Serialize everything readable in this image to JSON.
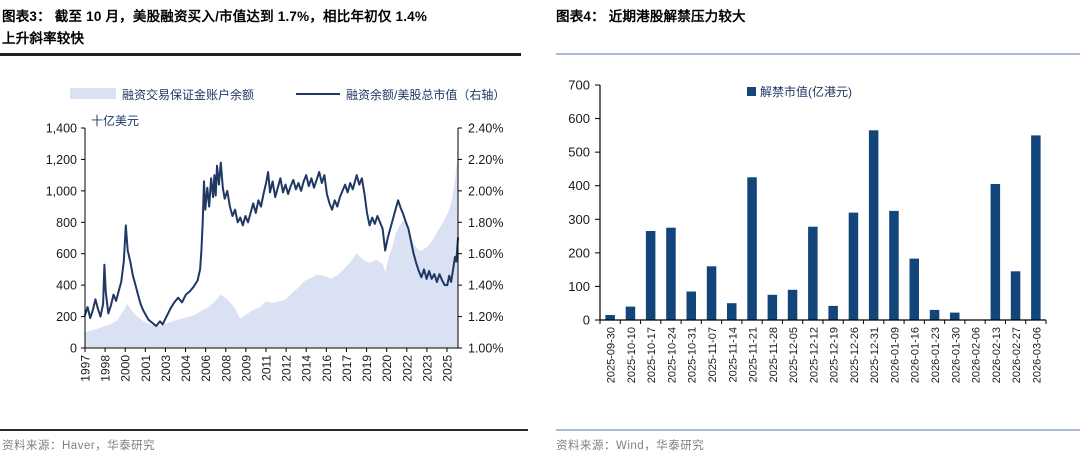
{
  "left_panel": {
    "title_line1": "图表3：  截至 10 月，美股融资买入/市值达到 1.7%，相比年初仅 1.4%",
    "title_line2": "上升斜率较快",
    "source": "资料来源：Haver，华泰研究"
  },
  "right_panel": {
    "title": "图表4：  近期港股解禁压力较大",
    "source": "资料来源：Wind，华泰研究"
  },
  "chart_data": [
    {
      "type": "area",
      "title": "截至10月，美股融资买入/市值达到1.7%，相比年初仅1.4%，上升斜率较快",
      "unit_label": "十亿美元",
      "legend": [
        {
          "label": "融资交易保证金账户余额",
          "swatch": "area"
        },
        {
          "label": "融资余额/美股总市值（右轴）",
          "swatch": "line"
        }
      ],
      "colors": {
        "area": "#d9e1f2",
        "line": "#1f3864",
        "axis": "#000000",
        "tick_text": "#1a1a1a",
        "legend_text": "#1f3864"
      },
      "left_axis": {
        "min": 0,
        "max": 1400,
        "ticks": [
          "0",
          "200",
          "400",
          "600",
          "800",
          "1,000",
          "1,200",
          "1,400"
        ]
      },
      "right_axis": {
        "min": 1.0,
        "max": 2.4,
        "ticks": [
          "1.00%",
          "1.20%",
          "1.40%",
          "1.60%",
          "1.80%",
          "2.00%",
          "2.20%",
          "2.40%"
        ]
      },
      "x_range": [
        1997,
        2025.83
      ],
      "x_tick_labels": [
        "1997",
        "1998",
        "2000",
        "2001",
        "2003",
        "2004",
        "2006",
        "2008",
        "2009",
        "2011",
        "2012",
        "2014",
        "2016",
        "2017",
        "2019",
        "2020",
        "2022",
        "2023",
        "2025"
      ],
      "area_series": {
        "name": "融资交易保证金账户余额",
        "points": [
          [
            1997.0,
            100
          ],
          [
            1997.5,
            112
          ],
          [
            1998.0,
            124
          ],
          [
            1998.5,
            138
          ],
          [
            1999.0,
            152
          ],
          [
            1999.5,
            176
          ],
          [
            2000.0,
            240
          ],
          [
            2000.25,
            278
          ],
          [
            2000.5,
            252
          ],
          [
            2000.75,
            225
          ],
          [
            2001.0,
            202
          ],
          [
            2001.5,
            172
          ],
          [
            2002.0,
            152
          ],
          [
            2002.5,
            140
          ],
          [
            2003.0,
            146
          ],
          [
            2003.5,
            162
          ],
          [
            2004.0,
            176
          ],
          [
            2004.5,
            186
          ],
          [
            2005.0,
            198
          ],
          [
            2005.5,
            212
          ],
          [
            2006.0,
            236
          ],
          [
            2006.5,
            258
          ],
          [
            2007.0,
            295
          ],
          [
            2007.5,
            340
          ],
          [
            2008.0,
            310
          ],
          [
            2008.5,
            262
          ],
          [
            2009.0,
            186
          ],
          [
            2009.5,
            214
          ],
          [
            2010.0,
            244
          ],
          [
            2010.5,
            258
          ],
          [
            2011.0,
            298
          ],
          [
            2011.5,
            286
          ],
          [
            2012.0,
            296
          ],
          [
            2012.5,
            308
          ],
          [
            2013.0,
            348
          ],
          [
            2013.5,
            386
          ],
          [
            2014.0,
            428
          ],
          [
            2014.5,
            448
          ],
          [
            2015.0,
            468
          ],
          [
            2015.5,
            458
          ],
          [
            2016.0,
            442
          ],
          [
            2016.5,
            462
          ],
          [
            2017.0,
            502
          ],
          [
            2017.5,
            544
          ],
          [
            2018.0,
            602
          ],
          [
            2018.3,
            578
          ],
          [
            2018.6,
            556
          ],
          [
            2019.0,
            542
          ],
          [
            2019.5,
            562
          ],
          [
            2020.0,
            534
          ],
          [
            2020.2,
            482
          ],
          [
            2020.5,
            580
          ],
          [
            2020.8,
            656
          ],
          [
            2021.0,
            722
          ],
          [
            2021.3,
            778
          ],
          [
            2021.6,
            812
          ],
          [
            2021.9,
            788
          ],
          [
            2022.2,
            700
          ],
          [
            2022.5,
            652
          ],
          [
            2022.8,
            622
          ],
          [
            2023.0,
            618
          ],
          [
            2023.5,
            648
          ],
          [
            2024.0,
            702
          ],
          [
            2024.3,
            752
          ],
          [
            2024.6,
            788
          ],
          [
            2024.9,
            836
          ],
          [
            2025.1,
            872
          ],
          [
            2025.3,
            920
          ],
          [
            2025.5,
            1010
          ],
          [
            2025.65,
            1105
          ],
          [
            2025.83,
            1250
          ]
        ]
      },
      "line_series": {
        "name": "融资余额/美股总市值（右轴）",
        "points": [
          [
            1997.0,
            1.21
          ],
          [
            1997.2,
            1.26
          ],
          [
            1997.4,
            1.19
          ],
          [
            1997.6,
            1.24
          ],
          [
            1997.8,
            1.31
          ],
          [
            1998.0,
            1.25
          ],
          [
            1998.2,
            1.2
          ],
          [
            1998.4,
            1.28
          ],
          [
            1998.5,
            1.53
          ],
          [
            1998.6,
            1.36
          ],
          [
            1998.8,
            1.22
          ],
          [
            1999.0,
            1.27
          ],
          [
            1999.2,
            1.34
          ],
          [
            1999.4,
            1.3
          ],
          [
            1999.6,
            1.36
          ],
          [
            1999.8,
            1.42
          ],
          [
            2000.0,
            1.55
          ],
          [
            2000.15,
            1.78
          ],
          [
            2000.3,
            1.62
          ],
          [
            2000.5,
            1.55
          ],
          [
            2000.7,
            1.46
          ],
          [
            2000.9,
            1.4
          ],
          [
            2001.1,
            1.34
          ],
          [
            2001.3,
            1.28
          ],
          [
            2001.5,
            1.24
          ],
          [
            2001.7,
            1.21
          ],
          [
            2001.9,
            1.18
          ],
          [
            2002.2,
            1.16
          ],
          [
            2002.5,
            1.14
          ],
          [
            2002.8,
            1.17
          ],
          [
            2003.0,
            1.15
          ],
          [
            2003.3,
            1.2
          ],
          [
            2003.6,
            1.25
          ],
          [
            2003.9,
            1.29
          ],
          [
            2004.2,
            1.32
          ],
          [
            2004.5,
            1.29
          ],
          [
            2004.8,
            1.34
          ],
          [
            2005.1,
            1.36
          ],
          [
            2005.4,
            1.39
          ],
          [
            2005.7,
            1.43
          ],
          [
            2005.9,
            1.5
          ],
          [
            2006.0,
            1.62
          ],
          [
            2006.1,
            1.8
          ],
          [
            2006.2,
            2.06
          ],
          [
            2006.3,
            1.88
          ],
          [
            2006.45,
            2.02
          ],
          [
            2006.6,
            1.9
          ],
          [
            2006.75,
            2.08
          ],
          [
            2006.9,
            1.96
          ],
          [
            2007.0,
            2.1
          ],
          [
            2007.1,
            1.97
          ],
          [
            2007.2,
            2.16
          ],
          [
            2007.35,
            2.04
          ],
          [
            2007.5,
            2.18
          ],
          [
            2007.65,
            2.02
          ],
          [
            2007.8,
            1.95
          ],
          [
            2008.0,
            2.0
          ],
          [
            2008.2,
            1.9
          ],
          [
            2008.4,
            1.84
          ],
          [
            2008.6,
            1.88
          ],
          [
            2008.8,
            1.8
          ],
          [
            2009.0,
            1.83
          ],
          [
            2009.2,
            1.78
          ],
          [
            2009.4,
            1.84
          ],
          [
            2009.6,
            1.8
          ],
          [
            2009.8,
            1.86
          ],
          [
            2010.0,
            1.92
          ],
          [
            2010.2,
            1.86
          ],
          [
            2010.4,
            1.94
          ],
          [
            2010.6,
            1.9
          ],
          [
            2010.8,
            1.98
          ],
          [
            2011.0,
            2.05
          ],
          [
            2011.15,
            2.12
          ],
          [
            2011.3,
            1.99
          ],
          [
            2011.5,
            2.06
          ],
          [
            2011.7,
            1.96
          ],
          [
            2011.9,
            2.02
          ],
          [
            2012.1,
            2.08
          ],
          [
            2012.3,
            1.99
          ],
          [
            2012.5,
            2.04
          ],
          [
            2012.7,
            1.98
          ],
          [
            2012.9,
            2.03
          ],
          [
            2013.1,
            2.07
          ],
          [
            2013.3,
            2.01
          ],
          [
            2013.5,
            2.05
          ],
          [
            2013.7,
            2.0
          ],
          [
            2013.9,
            2.06
          ],
          [
            2014.1,
            2.1
          ],
          [
            2014.3,
            2.03
          ],
          [
            2014.5,
            2.08
          ],
          [
            2014.7,
            2.02
          ],
          [
            2014.9,
            2.07
          ],
          [
            2015.1,
            2.12
          ],
          [
            2015.3,
            2.05
          ],
          [
            2015.5,
            2.1
          ],
          [
            2015.7,
            1.98
          ],
          [
            2015.9,
            1.92
          ],
          [
            2016.1,
            1.88
          ],
          [
            2016.3,
            1.94
          ],
          [
            2016.5,
            1.9
          ],
          [
            2016.7,
            1.96
          ],
          [
            2016.9,
            2.0
          ],
          [
            2017.1,
            2.04
          ],
          [
            2017.3,
            1.99
          ],
          [
            2017.5,
            2.05
          ],
          [
            2017.7,
            2.01
          ],
          [
            2017.9,
            2.07
          ],
          [
            2018.0,
            2.1
          ],
          [
            2018.2,
            2.04
          ],
          [
            2018.4,
            2.08
          ],
          [
            2018.6,
            1.98
          ],
          [
            2018.8,
            1.86
          ],
          [
            2019.0,
            1.78
          ],
          [
            2019.2,
            1.83
          ],
          [
            2019.4,
            1.79
          ],
          [
            2019.6,
            1.84
          ],
          [
            2019.8,
            1.8
          ],
          [
            2020.0,
            1.76
          ],
          [
            2020.2,
            1.62
          ],
          [
            2020.4,
            1.7
          ],
          [
            2020.6,
            1.76
          ],
          [
            2020.8,
            1.82
          ],
          [
            2021.0,
            1.88
          ],
          [
            2021.2,
            1.94
          ],
          [
            2021.4,
            1.89
          ],
          [
            2021.6,
            1.85
          ],
          [
            2021.8,
            1.8
          ],
          [
            2022.0,
            1.76
          ],
          [
            2022.2,
            1.68
          ],
          [
            2022.4,
            1.6
          ],
          [
            2022.6,
            1.54
          ],
          [
            2022.8,
            1.49
          ],
          [
            2023.0,
            1.45
          ],
          [
            2023.2,
            1.5
          ],
          [
            2023.4,
            1.44
          ],
          [
            2023.6,
            1.49
          ],
          [
            2023.8,
            1.44
          ],
          [
            2024.0,
            1.47
          ],
          [
            2024.2,
            1.42
          ],
          [
            2024.4,
            1.47
          ],
          [
            2024.6,
            1.43
          ],
          [
            2024.8,
            1.4
          ],
          [
            2025.0,
            1.4
          ],
          [
            2025.15,
            1.46
          ],
          [
            2025.3,
            1.42
          ],
          [
            2025.45,
            1.5
          ],
          [
            2025.6,
            1.58
          ],
          [
            2025.7,
            1.55
          ],
          [
            2025.83,
            1.7
          ]
        ]
      }
    },
    {
      "type": "bar",
      "title": "近期港股解禁压力较大",
      "legend_label": "解禁市值(亿港元)",
      "colors": {
        "bar": "#124579",
        "axis": "#000000",
        "tick_text": "#1a1a1a",
        "legend_text": "#1f3864"
      },
      "ylim": [
        0,
        700
      ],
      "y_ticks": [
        0,
        100,
        200,
        300,
        400,
        500,
        600,
        700
      ],
      "categories": [
        "2025-09-30",
        "2025-10-10",
        "2025-10-17",
        "2025-10-24",
        "2025-10-31",
        "2025-11-07",
        "2025-11-14",
        "2025-11-21",
        "2025-11-28",
        "2025-12-05",
        "2025-12-12",
        "2025-12-19",
        "2025-12-26",
        "2025-12-31",
        "2026-01-09",
        "2026-01-16",
        "2026-01-23",
        "2026-01-30",
        "2026-02-06",
        "2026-02-13",
        "2026-02-27",
        "2026-03-06"
      ],
      "values": [
        15,
        40,
        265,
        275,
        85,
        160,
        50,
        425,
        75,
        90,
        278,
        42,
        320,
        565,
        325,
        183,
        30,
        22,
        0,
        405,
        145,
        550
      ]
    }
  ]
}
